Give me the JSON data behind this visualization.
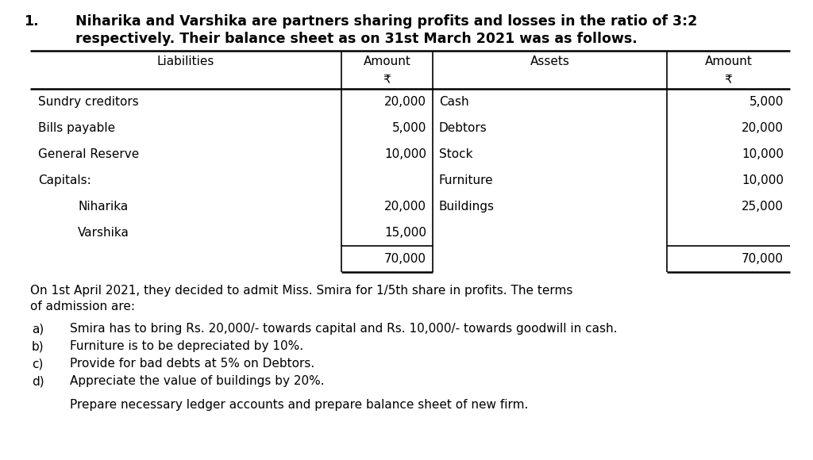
{
  "title_number": "1.",
  "title_line1": "Niharika and Varshika are partners sharing profits and losses in the ratio of 3:2",
  "title_line2": "respectively. Their balance sheet as on 31st March 2021 was as follows.",
  "rupee_symbol": "₹",
  "liabilities": [
    {
      "name": "Sundry creditors",
      "amount": "20,000",
      "indent": false
    },
    {
      "name": "Bills payable",
      "amount": "5,000",
      "indent": false
    },
    {
      "name": "General Reserve",
      "amount": "10,000",
      "indent": false
    },
    {
      "name": "Capitals:",
      "amount": "",
      "indent": false
    },
    {
      "name": "Niharika",
      "amount": "20,000",
      "indent": true
    },
    {
      "name": "Varshika",
      "amount": "15,000",
      "indent": true
    }
  ],
  "assets": [
    {
      "name": "Cash",
      "amount": "5,000"
    },
    {
      "name": "Debtors",
      "amount": "20,000"
    },
    {
      "name": "Stock",
      "amount": "10,000"
    },
    {
      "name": "Furniture",
      "amount": "10,000"
    },
    {
      "name": "Buildings",
      "amount": "25,000"
    }
  ],
  "total_liabilities": "70,000",
  "total_assets": "70,000",
  "footer_lines": [
    "On 1st April 2021, they decided to admit Miss. Smira for 1/5th share in profits. The terms",
    "of admission are:"
  ],
  "points_label": [
    "a)",
    "b)",
    "c)",
    "d)"
  ],
  "points_text": [
    "Smira has to bring Rs. 20,000/- towards capital and Rs. 10,000/- towards goodwill in cash.",
    "Furniture is to be depreciated by 10%.",
    "Provide for bad debts at 5% on Debtors.",
    "Appreciate the value of buildings by 20%."
  ],
  "last_line": "Prepare necessary ledger accounts and prepare balance sheet of new firm.",
  "bg_color": "#ffffff",
  "text_color": "#000000",
  "font_size": 11.0,
  "title_font_size": 12.5
}
